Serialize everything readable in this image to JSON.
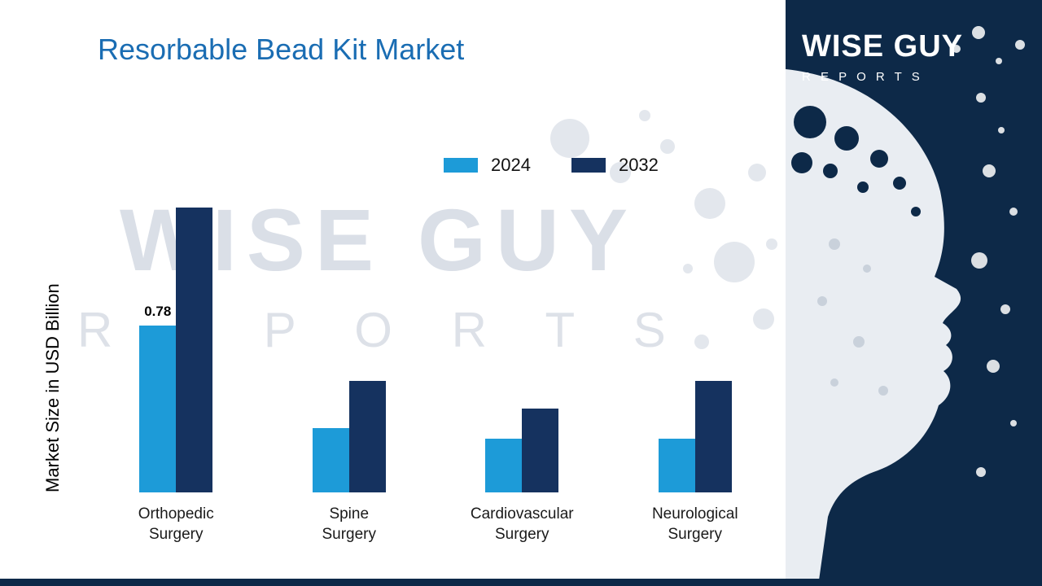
{
  "page": {
    "title": "Resorbable Bead Kit Market"
  },
  "brand": {
    "line1": "WISE GUY",
    "line2": "R E P O R T S"
  },
  "watermark": {
    "line1": "WISE GUY",
    "line2": "R E P O R T S"
  },
  "colors": {
    "accent_blue_2024": "#1d9bd8",
    "navy_2032": "#15325f",
    "panel_navy": "#0d2948",
    "title_blue": "#1a6db3"
  },
  "chart_data": {
    "type": "bar",
    "title": "Resorbable Bead Kit Market",
    "xlabel": "",
    "ylabel": "Market Size in USD Billion",
    "categories": [
      "Orthopedic Surgery",
      "Spine Surgery",
      "Cardiovascular Surgery",
      "Neurological Surgery"
    ],
    "series": [
      {
        "name": "2024",
        "color": "#1d9bd8",
        "values": [
          0.78,
          0.3,
          0.25,
          0.25
        ],
        "labels": [
          "0.78",
          "",
          "",
          ""
        ]
      },
      {
        "name": "2032",
        "color": "#15325f",
        "values": [
          1.33,
          0.52,
          0.39,
          0.52
        ],
        "labels": [
          "",
          "",
          "",
          ""
        ]
      }
    ],
    "ylim": [
      0,
      1.4
    ],
    "grid": false,
    "legend_position": "top"
  }
}
